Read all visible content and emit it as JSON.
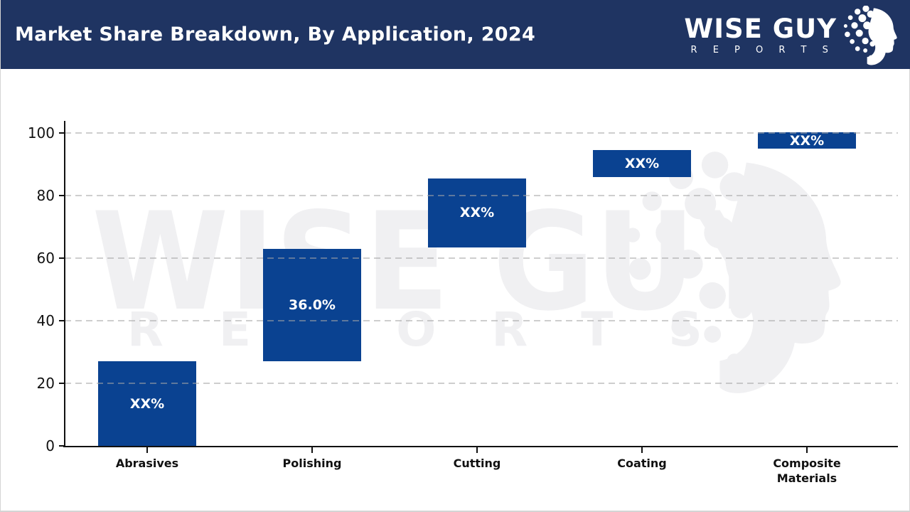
{
  "header": {
    "title": "Market Share Breakdown, By Application, 2024",
    "logo": {
      "name": "WISE GUY",
      "tagline": "R E P O R T S"
    }
  },
  "watermark": {
    "line1": "WISE GUY",
    "line2": "REPORTS"
  },
  "colors": {
    "header_bg": "#1f3462",
    "bar": "#0a4291",
    "bar_label": "#ffffff",
    "gridline": "#dcdcdc",
    "axis": "#111111",
    "watermark": "#f0f0f2"
  },
  "chart_data": {
    "type": "bar",
    "subtype": "waterfall",
    "title": "Market Share Breakdown, By Application, 2024",
    "xlabel": "",
    "ylabel": "",
    "ylim": [
      0,
      105
    ],
    "yticks": [
      0,
      20,
      40,
      60,
      80,
      100
    ],
    "grid": "horizontal-dashed",
    "legend": "none",
    "categories": [
      "Abrasives",
      "Polishing",
      "Cutting",
      "Coating",
      "Composite Materials"
    ],
    "bars": [
      {
        "category": "Abrasives",
        "start": 0,
        "end": 27,
        "label": "XX%"
      },
      {
        "category": "Polishing",
        "start": 27,
        "end": 63,
        "label": "36.0%"
      },
      {
        "category": "Cutting",
        "start": 63.5,
        "end": 85.5,
        "label": "XX%"
      },
      {
        "category": "Coating",
        "start": 86,
        "end": 94.5,
        "label": "XX%"
      },
      {
        "category": "Composite Materials",
        "start": 95,
        "end": 100.2,
        "label": "XX%"
      }
    ]
  }
}
